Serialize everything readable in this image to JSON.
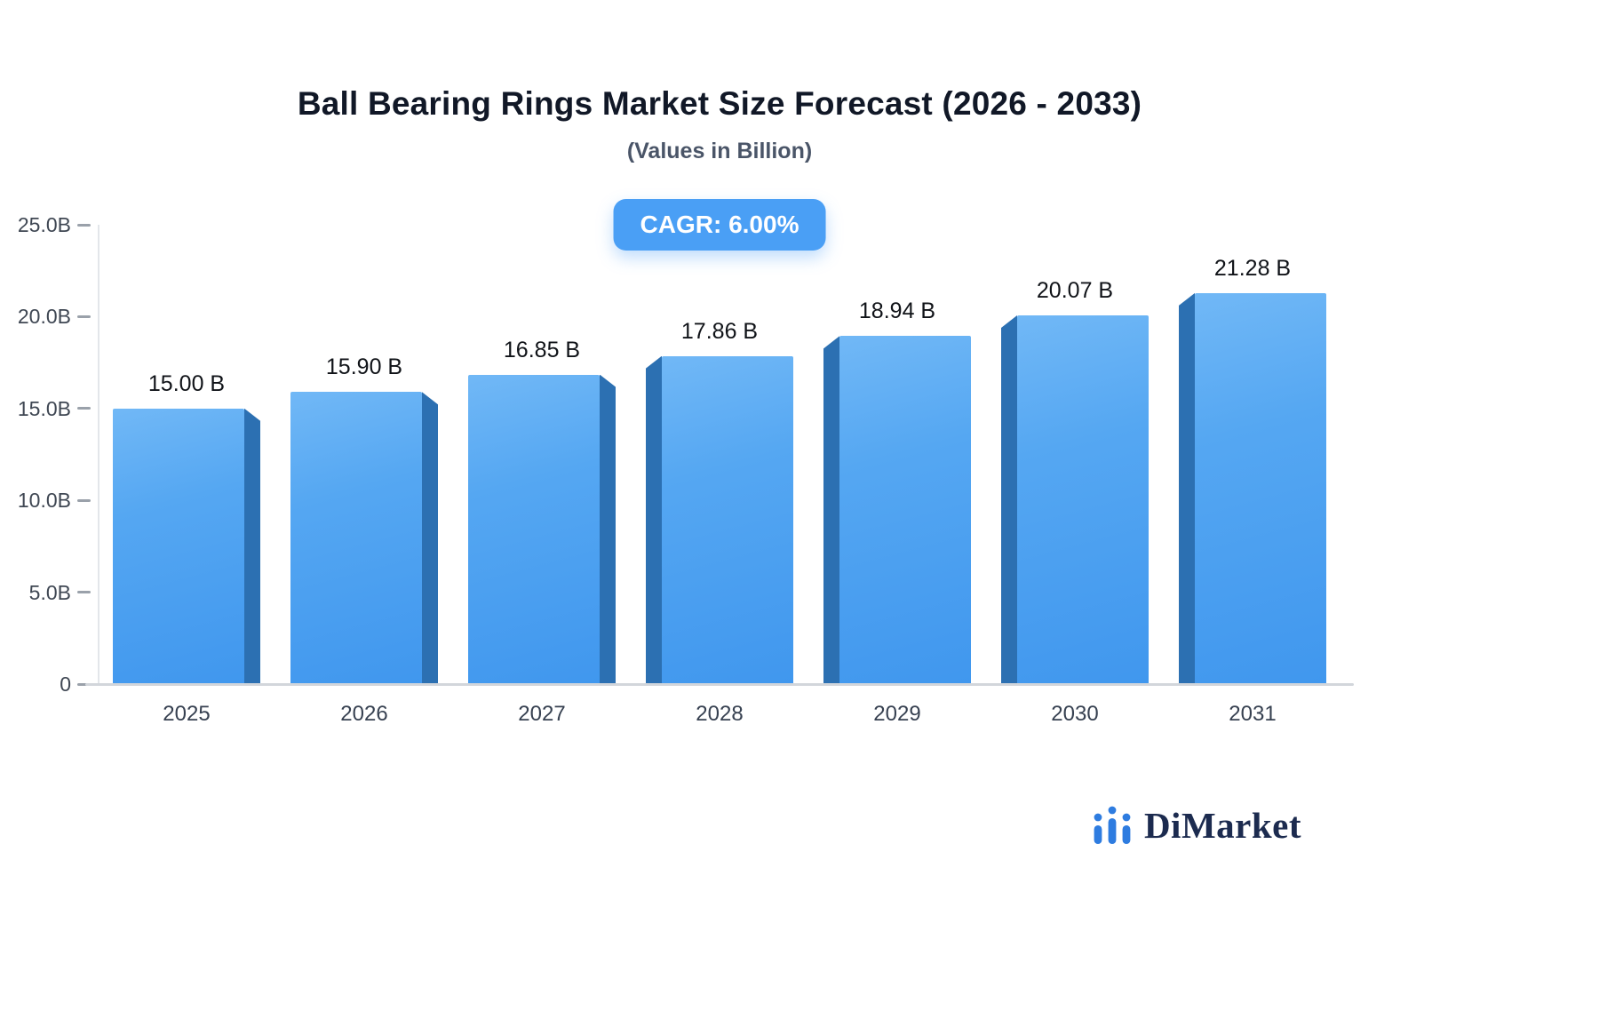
{
  "chart_data": {
    "type": "bar",
    "title": "Ball Bearing Rings Market Size Forecast (2026 - 2033)",
    "subtitle": "(Values in Billion)",
    "badge_label": "CAGR: 6.00%",
    "categories": [
      "2025",
      "2026",
      "2027",
      "2028",
      "2029",
      "2030",
      "2031"
    ],
    "values": [
      15.0,
      15.9,
      16.85,
      17.86,
      18.94,
      20.07,
      21.28
    ],
    "value_labels": [
      "15.00 B",
      "15.90 B",
      "16.85 B",
      "17.86 B",
      "18.94 B",
      "20.07 B",
      "21.28 B"
    ],
    "yticks": [
      {
        "label": "25.0B",
        "value": 25
      },
      {
        "label": "20.0B",
        "value": 20
      },
      {
        "label": "15.0B",
        "value": 15
      },
      {
        "label": "10.0B",
        "value": 10
      },
      {
        "label": "5.0B",
        "value": 5
      },
      {
        "label": "0",
        "value": 0
      }
    ],
    "ylim": [
      0,
      25
    ],
    "xlabel": "",
    "ylabel": "",
    "grid": false,
    "legend": false
  },
  "branding": {
    "logo_text": "DiMarket",
    "logo_icon": "bar-chart-icon"
  },
  "colors": {
    "bar_fill": "#4a9ff0",
    "bar_side": "#2c70b2",
    "badge_bg": "#4a9ff5",
    "badge_text": "#ffffff",
    "title_text": "#111827",
    "subtitle_text": "#4a5568",
    "axis_text": "#3f4753",
    "logo_blue": "#2e7ce0",
    "logo_navy": "#1c2b4f"
  }
}
